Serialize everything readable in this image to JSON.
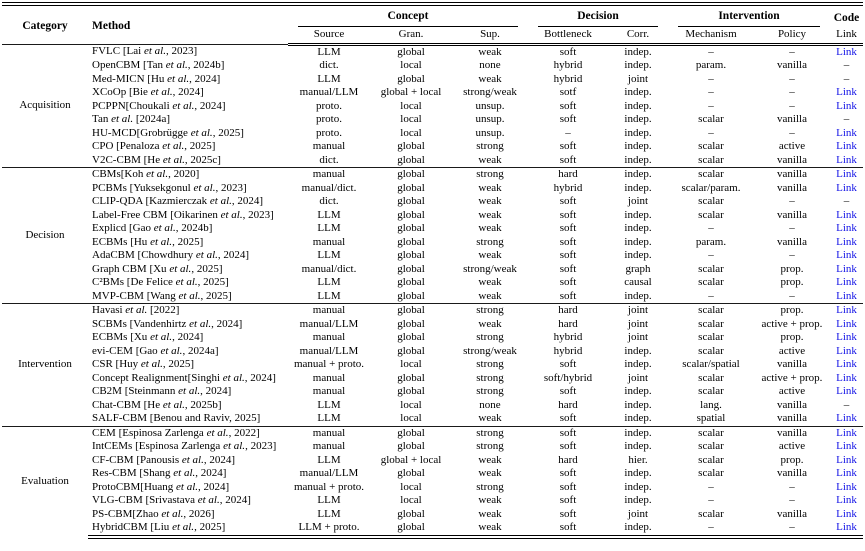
{
  "colors": {
    "link": "#1414e6",
    "text": "#000000",
    "rule": "#000000"
  },
  "header": {
    "category": "Category",
    "method": "Method",
    "concept": "Concept",
    "decision": "Decision",
    "intervention": "Intervention",
    "code": "Code",
    "source": "Source",
    "gran": "Gran.",
    "sup": "Sup.",
    "bottleneck": "Bottleneck",
    "corr": "Corr.",
    "mechanism": "Mechanism",
    "policy": "Policy",
    "link": "Link"
  },
  "groups": [
    {
      "category": "Acquisition",
      "rows": [
        {
          "method": "FVLC [Lai et al., 2023]",
          "source": "LLM",
          "gran": "global",
          "sup": "weak",
          "bottleneck": "soft",
          "corr": "indep.",
          "mechanism": "–",
          "policy": "–",
          "code": "Link"
        },
        {
          "method": "OpenCBM [Tan et al., 2024b]",
          "source": "dict.",
          "gran": "local",
          "sup": "none",
          "bottleneck": "hybrid",
          "corr": "indep.",
          "mechanism": "param.",
          "policy": "vanilla",
          "code": "–"
        },
        {
          "method": "Med-MICN [Hu et al., 2024]",
          "source": "LLM",
          "gran": "global",
          "sup": "weak",
          "bottleneck": "hybrid",
          "corr": "joint",
          "mechanism": "–",
          "policy": "–",
          "code": "–"
        },
        {
          "method": "XCoOp [Bie et al., 2024]",
          "source": "manual/LLM",
          "gran": "global + local",
          "sup": "strong/weak",
          "bottleneck": "sotf",
          "corr": "indep.",
          "mechanism": "–",
          "policy": "–",
          "code": "Link"
        },
        {
          "method": "PCPPN[Choukali et al., 2024]",
          "source": "proto.",
          "gran": "local",
          "sup": "unsup.",
          "bottleneck": "soft",
          "corr": "indep.",
          "mechanism": "–",
          "policy": "–",
          "code": "Link"
        },
        {
          "method": "Tan et al. [2024a]",
          "source": "proto.",
          "gran": "local",
          "sup": "unsup.",
          "bottleneck": "soft",
          "corr": "indep.",
          "mechanism": "scalar",
          "policy": "vanilla",
          "code": "–"
        },
        {
          "method": "HU-MCD[Grobrügge et al., 2025]",
          "source": "proto.",
          "gran": "local",
          "sup": "unsup.",
          "bottleneck": "–",
          "corr": "indep.",
          "mechanism": "–",
          "policy": "–",
          "code": "Link"
        },
        {
          "method": "CPO [Penaloza et al., 2025]",
          "source": "manual",
          "gran": "global",
          "sup": "strong",
          "bottleneck": "soft",
          "corr": "indep.",
          "mechanism": "scalar",
          "policy": "active",
          "code": "Link"
        },
        {
          "method": "V2C-CBM [He et al., 2025c]",
          "source": "dict.",
          "gran": "global",
          "sup": "weak",
          "bottleneck": "soft",
          "corr": "indep.",
          "mechanism": "scalar",
          "policy": "vanilla",
          "code": "Link"
        }
      ]
    },
    {
      "category": "Decision",
      "rows": [
        {
          "method": "CBMs[Koh et al., 2020]",
          "source": "manual",
          "gran": "global",
          "sup": "strong",
          "bottleneck": "hard",
          "corr": "indep.",
          "mechanism": "scalar",
          "policy": "vanilla",
          "code": "Link"
        },
        {
          "method": "PCBMs [Yuksekgonul et al., 2023]",
          "source": "manual/dict.",
          "gran": "global",
          "sup": "weak",
          "bottleneck": "hybrid",
          "corr": "indep.",
          "mechanism": "scalar/param.",
          "policy": "vanilla",
          "code": "Link"
        },
        {
          "method": "CLIP-QDA [Kazmierczak et al., 2024]",
          "source": "dict.",
          "gran": "global",
          "sup": "weak",
          "bottleneck": "soft",
          "corr": "joint",
          "mechanism": "scalar",
          "policy": "–",
          "code": "–"
        },
        {
          "method": "Label-Free CBM [Oikarinen et al., 2023]",
          "source": "LLM",
          "gran": "global",
          "sup": "weak",
          "bottleneck": "soft",
          "corr": "indep.",
          "mechanism": "scalar",
          "policy": "vanilla",
          "code": "Link"
        },
        {
          "method": "Explicd [Gao et al., 2024b]",
          "source": "LLM",
          "gran": "global",
          "sup": "weak",
          "bottleneck": "soft",
          "corr": "indep.",
          "mechanism": "–",
          "policy": "–",
          "code": "Link"
        },
        {
          "method": "ECBMs [Hu et al., 2025]",
          "source": "manual",
          "gran": "global",
          "sup": "strong",
          "bottleneck": "soft",
          "corr": "indep.",
          "mechanism": "param.",
          "policy": "vanilla",
          "code": "Link"
        },
        {
          "method": "AdaCBM [Chowdhury et al., 2024]",
          "source": "LLM",
          "gran": "global",
          "sup": "weak",
          "bottleneck": "soft",
          "corr": "indep.",
          "mechanism": "–",
          "policy": "–",
          "code": "Link"
        },
        {
          "method": "Graph CBM [Xu et al., 2025]",
          "source": "manual/dict.",
          "gran": "global",
          "sup": "strong/weak",
          "bottleneck": "soft",
          "corr": "graph",
          "mechanism": "scalar",
          "policy": "prop.",
          "code": "Link"
        },
        {
          "method": "C²BMs [De Felice et al., 2025]",
          "source": "LLM",
          "gran": "global",
          "sup": "weak",
          "bottleneck": "soft",
          "corr": "causal",
          "mechanism": "scalar",
          "policy": "prop.",
          "code": "Link"
        },
        {
          "method": "MVP-CBM [Wang et al., 2025]",
          "source": "LLM",
          "gran": "global",
          "sup": "weak",
          "bottleneck": "soft",
          "corr": "indep.",
          "mechanism": "–",
          "policy": "–",
          "code": "Link"
        }
      ]
    },
    {
      "category": "Intervention",
      "rows": [
        {
          "method": "Havasi et al. [2022]",
          "source": "manual",
          "gran": "global",
          "sup": "strong",
          "bottleneck": "hard",
          "corr": "joint",
          "mechanism": "scalar",
          "policy": "prop.",
          "code": "Link"
        },
        {
          "method": "SCBMs [Vandenhirtz et al., 2024]",
          "source": "manual/LLM",
          "gran": "global",
          "sup": "weak",
          "bottleneck": "hard",
          "corr": "joint",
          "mechanism": "scalar",
          "policy": "active + prop.",
          "code": "Link"
        },
        {
          "method": "ECBMs [Xu et al., 2024]",
          "source": "manual",
          "gran": "global",
          "sup": "strong",
          "bottleneck": "hybrid",
          "corr": "joint",
          "mechanism": "scalar",
          "policy": "prop.",
          "code": "Link"
        },
        {
          "method": "evi-CEM [Gao et al., 2024a]",
          "source": "manual/LLM",
          "gran": "global",
          "sup": "strong/weak",
          "bottleneck": "hybrid",
          "corr": "indep.",
          "mechanism": "scalar",
          "policy": "active",
          "code": "Link"
        },
        {
          "method": "CSR [Huy et al., 2025]",
          "source": "manual + proto.",
          "gran": "local",
          "sup": "strong",
          "bottleneck": "soft",
          "corr": "indep.",
          "mechanism": "scalar/spatial",
          "policy": "vanilla",
          "code": "Link"
        },
        {
          "method": "Concept Realignment[Singhi et al., 2024]",
          "source": "manual",
          "gran": "global",
          "sup": "strong",
          "bottleneck": "soft/hybrid",
          "corr": "joint",
          "mechanism": "scalar",
          "policy": "active + prop.",
          "code": "Link"
        },
        {
          "method": "CB2M [Steinmann et al., 2024]",
          "source": "manual",
          "gran": "global",
          "sup": "strong",
          "bottleneck": "soft",
          "corr": "indep.",
          "mechanism": "scalar",
          "policy": "active",
          "code": "Link"
        },
        {
          "method": "Chat-CBM [He et al., 2025b]",
          "source": "LLM",
          "gran": "local",
          "sup": "none",
          "bottleneck": "hard",
          "corr": "indep.",
          "mechanism": "lang.",
          "policy": "vanilla",
          "code": "–"
        },
        {
          "method": "SALF-CBM [Benou and Raviv, 2025]",
          "source": "LLM",
          "gran": "local",
          "sup": "weak",
          "bottleneck": "soft",
          "corr": "indep.",
          "mechanism": "spatial",
          "policy": "vanilla",
          "code": "Link"
        }
      ]
    },
    {
      "category": "Evaluation",
      "rows": [
        {
          "method": "CEM [Espinosa Zarlenga et al., 2022]",
          "source": "manual",
          "gran": "global",
          "sup": "strong",
          "bottleneck": "soft",
          "corr": "indep.",
          "mechanism": "scalar",
          "policy": "vanilla",
          "code": "Link"
        },
        {
          "method": "IntCEMs [Espinosa Zarlenga et al., 2023]",
          "source": "manual",
          "gran": "global",
          "sup": "strong",
          "bottleneck": "soft",
          "corr": "indep.",
          "mechanism": "scalar",
          "policy": "active",
          "code": "Link"
        },
        {
          "method": "CF-CBM [Panousis et al., 2024]",
          "source": "LLM",
          "gran": "global + local",
          "sup": "weak",
          "bottleneck": "hard",
          "corr": "hier.",
          "mechanism": "scalar",
          "policy": "prop.",
          "code": "Link"
        },
        {
          "method": "Res-CBM [Shang et al., 2024]",
          "source": "manual/LLM",
          "gran": "global",
          "sup": "weak",
          "bottleneck": "soft",
          "corr": "indep.",
          "mechanism": "scalar",
          "policy": "vanilla",
          "code": "Link"
        },
        {
          "method": "ProtoCBM[Huang et al., 2024]",
          "source": "manual + proto.",
          "gran": "local",
          "sup": "strong",
          "bottleneck": "soft",
          "corr": "indep.",
          "mechanism": "–",
          "policy": "–",
          "code": "Link"
        },
        {
          "method": "VLG-CBM [Srivastava et al., 2024]",
          "source": "LLM",
          "gran": "local",
          "sup": "weak",
          "bottleneck": "soft",
          "corr": "indep.",
          "mechanism": "–",
          "policy": "–",
          "code": "Link"
        },
        {
          "method": "PS-CBM[Zhao et al., 2026]",
          "source": "LLM",
          "gran": "global",
          "sup": "weak",
          "bottleneck": "soft",
          "corr": "joint",
          "mechanism": "scalar",
          "policy": "vanilla",
          "code": "Link"
        },
        {
          "method": "HybridCBM [Liu et al., 2025]",
          "source": "LLM + proto.",
          "gran": "global",
          "sup": "weak",
          "bottleneck": "soft",
          "corr": "indep.",
          "mechanism": "–",
          "policy": "–",
          "code": "Link"
        }
      ]
    }
  ]
}
